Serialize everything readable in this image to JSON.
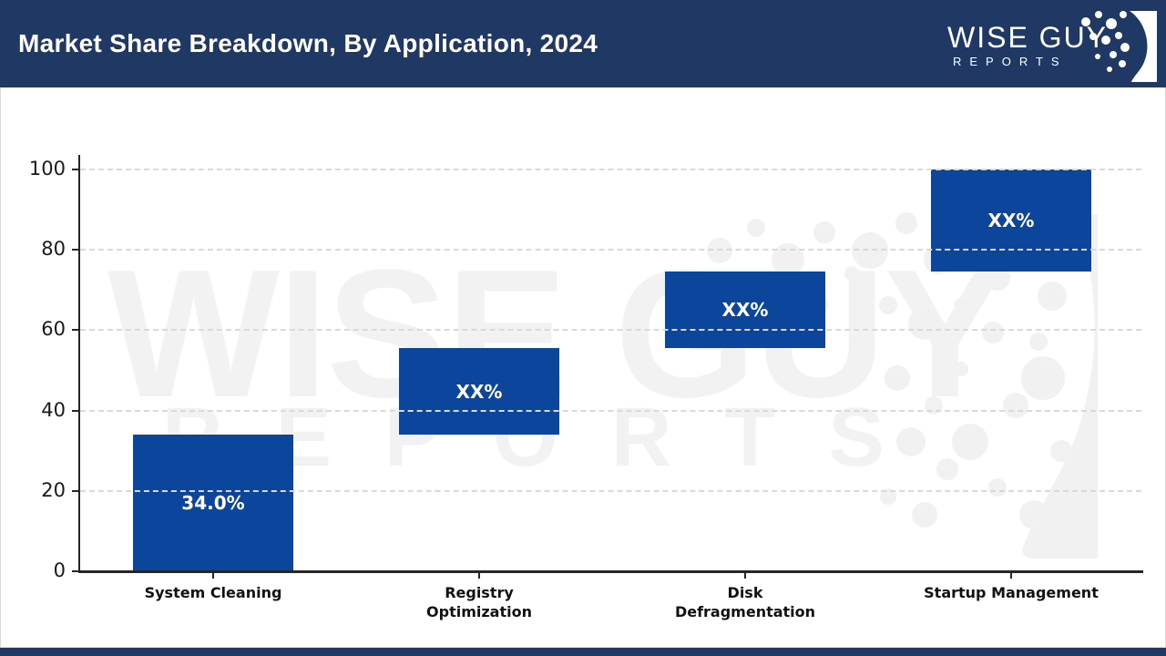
{
  "header": {
    "title": "Market Share Breakdown, By Application, 2024",
    "logo": {
      "line1": "WISE GUY",
      "line2": "REPORTS"
    }
  },
  "watermark": {
    "line1": "WISE GUY",
    "line2": "REPORTS"
  },
  "colors": {
    "header_bg": "#1F3864",
    "footer_bg": "#1F3864",
    "bar": "#0B459C",
    "bar_label": "#FFFFFF",
    "gridline": "#D9D9D9",
    "axis": "#262626",
    "watermark": "#F2F2F2"
  },
  "chart_data": {
    "type": "waterfall",
    "title": "Market Share Breakdown, By Application, 2024",
    "categories": [
      "System Cleaning",
      "Registry\nOptimization",
      "Disk\nDefragmentation",
      "Startup Management"
    ],
    "segments": [
      {
        "category": "System Cleaning",
        "start": 0,
        "end": 34,
        "label": "34.0%"
      },
      {
        "category": "Registry Optimization",
        "start": 34,
        "end": 55.5,
        "label": "XX%"
      },
      {
        "category": "Disk Defragmentation",
        "start": 55.5,
        "end": 74.5,
        "label": "XX%"
      },
      {
        "category": "Startup Management",
        "start": 74.5,
        "end": 100,
        "label": "XX%"
      }
    ],
    "yticks": [
      0,
      20,
      40,
      60,
      80,
      100
    ],
    "ylim": [
      0,
      100
    ],
    "grid": "horizontal-dashed",
    "legend": "none"
  }
}
